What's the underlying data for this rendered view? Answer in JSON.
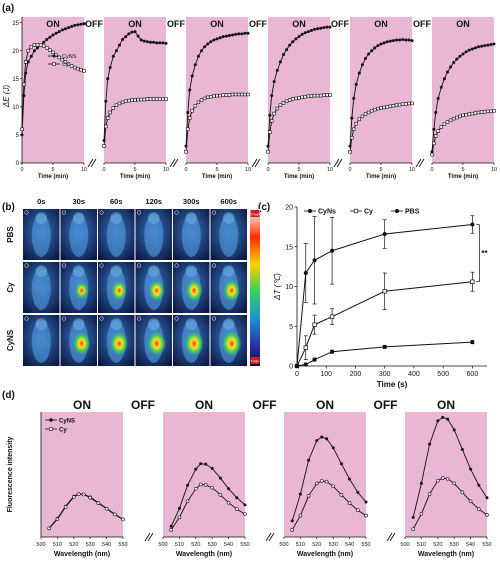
{
  "panel_labels": [
    "(a)",
    "(b)",
    "(c)",
    "(d)"
  ],
  "colors": {
    "panel_bg": "#e9b7d4",
    "curve": "#111111",
    "heat_low": "#1a1a8c",
    "heat_high": "#ff2a00"
  },
  "chart_data": [
    {
      "id": "a",
      "type": "line",
      "ylabel": "ΔE (J)",
      "xlabel": "Time (min)",
      "xlim": [
        0,
        10
      ],
      "ylim": [
        0,
        26
      ],
      "xticks": [
        0,
        5,
        10
      ],
      "yticks": [
        0,
        5,
        10,
        15,
        20,
        25
      ],
      "state_labels": [
        "ON",
        "OFF",
        "ON",
        "OFF",
        "ON",
        "OFF",
        "ON",
        "OFF",
        "ON",
        "OFF",
        "ON"
      ],
      "legend": [
        "CyNS",
        "Cy"
      ],
      "cycles": [
        {
          "x": [
            0,
            0.3,
            0.6,
            1,
            1.5,
            2,
            2.5,
            3,
            3.5,
            4,
            4.5,
            5,
            5.5,
            6,
            6.5,
            7,
            7.5,
            8,
            8.5,
            9,
            9.5,
            10
          ],
          "series": [
            {
              "name": "CyNS",
              "values": [
                5,
                12,
                16,
                18,
                19,
                20,
                20.5,
                21,
                21.5,
                22,
                22.4,
                22.8,
                23.1,
                23.4,
                23.7,
                23.9,
                24.1,
                24.3,
                24.5,
                24.6,
                24.7,
                24.8
              ]
            },
            {
              "name": "Cy",
              "values": [
                6,
                14,
                18,
                20,
                20.7,
                21,
                21,
                21,
                20.8,
                20.5,
                20.1,
                19.7,
                19.2,
                18.8,
                18.4,
                18,
                17.6,
                17.3,
                17,
                16.8,
                16.6,
                16.4
              ]
            }
          ]
        },
        {
          "x": [
            0,
            0.3,
            0.6,
            1,
            1.5,
            2,
            2.5,
            3,
            3.5,
            4,
            4.5,
            5,
            5.5,
            6,
            6.5,
            7,
            7.5,
            8,
            8.5,
            9,
            9.5,
            10
          ],
          "series": [
            {
              "name": "CyNS",
              "values": [
                4,
                11,
                15,
                17,
                19,
                20,
                21,
                22,
                22.5,
                23,
                23.3,
                23.4,
                22.6,
                21.9,
                21.7,
                21.6,
                21.5,
                21.5,
                21.4,
                21.4,
                21.4,
                21.3
              ]
            },
            {
              "name": "Cy",
              "values": [
                3,
                6.5,
                8,
                9,
                9.8,
                10.3,
                10.6,
                10.8,
                11,
                11.1,
                11.2,
                11.2,
                11.3,
                11.3,
                11.3,
                11.4,
                11.4,
                11.4,
                11.4,
                11.4,
                11.4,
                11.4
              ]
            }
          ]
        },
        {
          "x": [
            0,
            0.3,
            0.6,
            1,
            1.5,
            2,
            2.5,
            3,
            3.5,
            4,
            4.5,
            5,
            5.5,
            6,
            6.5,
            7,
            7.5,
            8,
            8.5,
            9,
            9.5,
            10
          ],
          "series": [
            {
              "name": "CyNS",
              "values": [
                3,
                9,
                13,
                15.5,
                17.5,
                19,
                20,
                20.7,
                21.2,
                21.6,
                21.9,
                22.1,
                22.3,
                22.5,
                22.6,
                22.7,
                22.8,
                22.9,
                23,
                23,
                23.1,
                23.1
              ]
            },
            {
              "name": "Cy",
              "values": [
                2,
                6,
                8,
                9.3,
                10.2,
                10.8,
                11.2,
                11.5,
                11.7,
                11.8,
                11.9,
                12,
                12,
                12.1,
                12.1,
                12.1,
                12.2,
                12.2,
                12.2,
                12.2,
                12.2,
                12.2
              ]
            }
          ]
        },
        {
          "x": [
            0,
            0.3,
            0.6,
            1,
            1.5,
            2,
            2.5,
            3,
            3.5,
            4,
            4.5,
            5,
            5.5,
            6,
            6.5,
            7,
            7.5,
            8,
            8.5,
            9,
            9.5,
            10
          ],
          "series": [
            {
              "name": "CyNS",
              "values": [
                3,
                8.5,
                12,
                14.5,
                16.5,
                18,
                19.3,
                20.2,
                21,
                21.6,
                22.1,
                22.5,
                22.9,
                23.2,
                23.4,
                23.6,
                23.8,
                23.9,
                24,
                24.1,
                24.2,
                24.2
              ]
            },
            {
              "name": "Cy",
              "values": [
                2,
                5.5,
                7.5,
                8.8,
                9.7,
                10.3,
                10.7,
                11,
                11.2,
                11.4,
                11.5,
                11.6,
                11.7,
                11.8,
                11.9,
                11.9,
                12,
                12,
                12,
                12.1,
                12.1,
                12.1
              ]
            }
          ]
        },
        {
          "x": [
            0,
            0.3,
            0.6,
            1,
            1.5,
            2,
            2.5,
            3,
            3.5,
            4,
            4.5,
            5,
            5.5,
            6,
            6.5,
            7,
            7.5,
            8,
            8.5,
            9,
            9.5,
            10
          ],
          "series": [
            {
              "name": "CyNS",
              "values": [
                3,
                8,
                11.5,
                14,
                16,
                17.5,
                18.6,
                19.4,
                20,
                20.5,
                20.9,
                21.2,
                21.4,
                21.6,
                21.7,
                21.8,
                21.9,
                21.9,
                22,
                21.9,
                21.9,
                21.8
              ]
            },
            {
              "name": "Cy",
              "values": [
                2,
                4.5,
                6,
                7,
                7.8,
                8.3,
                8.7,
                9,
                9.3,
                9.5,
                9.7,
                9.8,
                9.9,
                10,
                10.1,
                10.2,
                10.3,
                10.4,
                10.5,
                10.5,
                10.6,
                10.6
              ]
            }
          ]
        },
        {
          "x": [
            0,
            0.3,
            0.6,
            1,
            1.5,
            2,
            2.5,
            3,
            3.5,
            4,
            4.5,
            5,
            5.5,
            6,
            6.5,
            7,
            7.5,
            8,
            8.5,
            9,
            9.5,
            10
          ],
          "series": [
            {
              "name": "CyNS",
              "values": [
                2,
                6,
                9,
                11.5,
                13.5,
                15,
                16.2,
                17.1,
                17.9,
                18.5,
                19,
                19.4,
                19.8,
                20.1,
                20.3,
                20.5,
                20.7,
                20.8,
                20.9,
                21,
                21.1,
                21.2
              ]
            },
            {
              "name": "Cy",
              "values": [
                1.5,
                3.5,
                4.8,
                5.7,
                6.4,
                6.9,
                7.3,
                7.6,
                7.9,
                8.1,
                8.3,
                8.5,
                8.6,
                8.7,
                8.8,
                8.9,
                9,
                9.1,
                9.1,
                9.2,
                9.2,
                9.3
              ]
            }
          ]
        }
      ]
    },
    {
      "id": "b",
      "type": "heatmap",
      "time_labels": [
        "0s",
        "30s",
        "60s",
        "120s",
        "300s",
        "600s"
      ],
      "row_labels": [
        "PBS",
        "Cy",
        "CyNS"
      ],
      "hotspot_intensity": [
        [
          0,
          0,
          0,
          0,
          0,
          0
        ],
        [
          0,
          0.55,
          0.65,
          0.7,
          0.75,
          0.75
        ],
        [
          0,
          0.8,
          0.85,
          0.9,
          0.92,
          0.95
        ]
      ],
      "colorbar": {
        "top_label": "Tmax",
        "bottom_label": "Tmin"
      }
    },
    {
      "id": "c",
      "type": "line",
      "xlabel": "Time (s)",
      "ylabel": "ΔT (℃)",
      "xlim": [
        0,
        650
      ],
      "ylim": [
        0,
        20
      ],
      "xticks": [
        0,
        100,
        200,
        300,
        400,
        500,
        600
      ],
      "yticks": [
        0,
        5,
        10,
        15,
        20
      ],
      "legend": [
        "CyNs",
        "Cy",
        "PBS"
      ],
      "x": [
        0,
        30,
        60,
        120,
        300,
        600
      ],
      "series": [
        {
          "name": "CyNs",
          "values": [
            0,
            11.7,
            13.3,
            14.5,
            16.6,
            17.8
          ],
          "errors": [
            0,
            3.7,
            5.5,
            4.2,
            1.8,
            1.1
          ]
        },
        {
          "name": "Cy",
          "values": [
            0,
            2.3,
            5.2,
            6.2,
            9.4,
            10.6
          ],
          "errors": [
            0,
            1.5,
            1.2,
            1.0,
            2.3,
            1.2
          ]
        },
        {
          "name": "PBS",
          "values": [
            0,
            0.2,
            0.8,
            1.8,
            2.4,
            3.0
          ],
          "errors": [
            0,
            0.1,
            0.2,
            0.2,
            0.2,
            0.2
          ]
        }
      ],
      "annotation": "**"
    },
    {
      "id": "d",
      "type": "line",
      "xlabel": "Wavelength (nm)",
      "ylabel": "Fluorescence intensity",
      "xlim": [
        500,
        550
      ],
      "ylim": [
        0,
        3500
      ],
      "xticks": [
        500,
        510,
        520,
        530,
        540,
        550
      ],
      "state_labels": [
        "ON",
        "OFF",
        "ON",
        "OFF",
        "ON",
        "OFF",
        "ON"
      ],
      "legend": [
        "CyNS",
        "Cy"
      ],
      "wavelengths": [
        505,
        510,
        515,
        520,
        523,
        526,
        530,
        535,
        540,
        545,
        550
      ],
      "cycles": [
        {
          "series": [
            {
              "name": "CyNS",
              "values": [
                250,
                520,
                860,
                1140,
                1210,
                1200,
                1120,
                960,
                800,
                640,
                500
              ]
            },
            {
              "name": "Cy",
              "values": [
                240,
                500,
                840,
                1120,
                1200,
                1190,
                1100,
                950,
                790,
                630,
                490
              ]
            }
          ]
        },
        {
          "series": [
            {
              "name": "CyNS",
              "values": [
                300,
                800,
                1450,
                1900,
                2050,
                2040,
                1920,
                1650,
                1350,
                1100,
                900
              ]
            },
            {
              "name": "Cy",
              "values": [
                200,
                550,
                1000,
                1350,
                1470,
                1460,
                1380,
                1180,
                960,
                780,
                640
              ]
            }
          ]
        },
        {
          "series": [
            {
              "name": "CyNS",
              "values": [
                450,
                1200,
                2150,
                2700,
                2800,
                2750,
                2500,
                2050,
                1620,
                1250,
                980
              ]
            },
            {
              "name": "Cy",
              "values": [
                200,
                600,
                1150,
                1500,
                1570,
                1550,
                1420,
                1180,
                950,
                750,
                600
              ]
            }
          ]
        },
        {
          "series": [
            {
              "name": "CyNS",
              "values": [
                550,
                1500,
                2600,
                3250,
                3350,
                3300,
                3000,
                2450,
                1900,
                1450,
                1100
              ]
            },
            {
              "name": "Cy",
              "values": [
                220,
                650,
                1200,
                1580,
                1650,
                1630,
                1500,
                1250,
                1000,
                780,
                620
              ]
            }
          ]
        }
      ]
    }
  ]
}
